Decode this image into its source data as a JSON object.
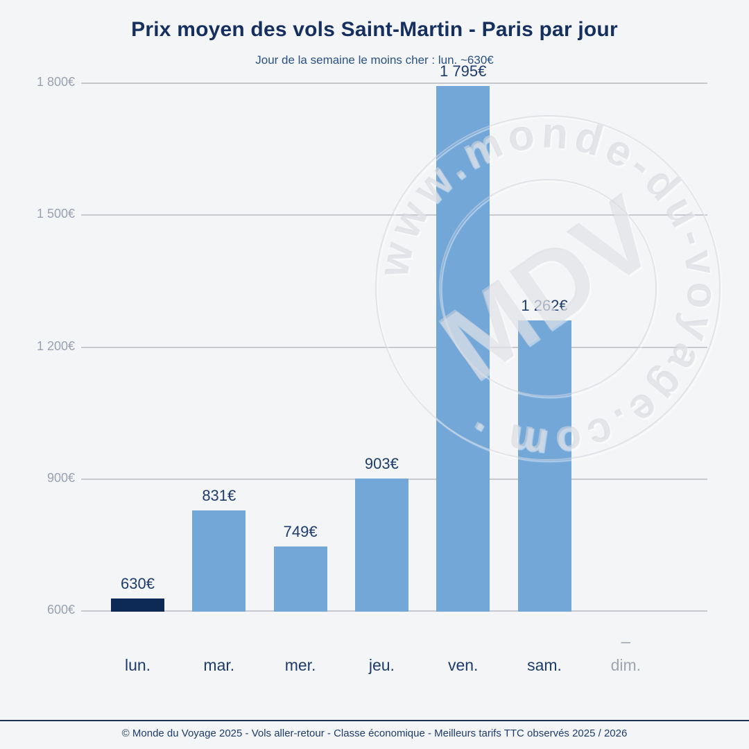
{
  "title": "Prix moyen des vols Saint-Martin - Paris par jour",
  "subtitle": "Jour de la semaine le moins cher : lun. ~630€",
  "footer": "© Monde du Voyage 2025 - Vols aller-retour - Classe économique - Meilleurs tarifs TTC observés 2025 / 2026",
  "watermark": {
    "ring_text": "www.monde-du-voyage.com ·",
    "center_text": "MDV"
  },
  "colors": {
    "background": "#f4f5f6",
    "bar": "#73a7d8",
    "bar_highlight": "#0d2a56",
    "title": "#15305f",
    "subtitle": "#2a5183",
    "value_label": "#1d3c6b",
    "axis_label": "#1d3c6b",
    "axis_label_muted": "#a0a6b1",
    "tick_label": "#99a1b1",
    "gridline": "#c7c9cf",
    "footer_text": "#1d3c6b",
    "footer_line": "#1b3057",
    "watermark": "#d3d6dc"
  },
  "chart_data": {
    "type": "bar",
    "title": "Prix moyen des vols Saint-Martin - Paris par jour",
    "subtitle": "Jour de la semaine le moins cher : lun. ~630€",
    "categories": [
      "lun.",
      "mar.",
      "mer.",
      "jeu.",
      "ven.",
      "sam.",
      "dim."
    ],
    "values": [
      630,
      831,
      749,
      903,
      1795,
      1262,
      null
    ],
    "value_labels": [
      "630€",
      "831€",
      "749€",
      "903€",
      "1 795€",
      "1 262€",
      "–"
    ],
    "highlight_index": 0,
    "highlight_meaning": "cheapest day",
    "no_data_placeholder": "–",
    "ylabel": "",
    "xlabel": "",
    "ylim": [
      600,
      1800
    ],
    "y_ticks": [
      {
        "value": 600,
        "label": "600€"
      },
      {
        "value": 900,
        "label": "900€"
      },
      {
        "value": 1200,
        "label": "1 200€"
      },
      {
        "value": 1500,
        "label": "1 500€"
      },
      {
        "value": 1800,
        "label": "1 800€"
      }
    ],
    "grid": true,
    "legend": false
  }
}
